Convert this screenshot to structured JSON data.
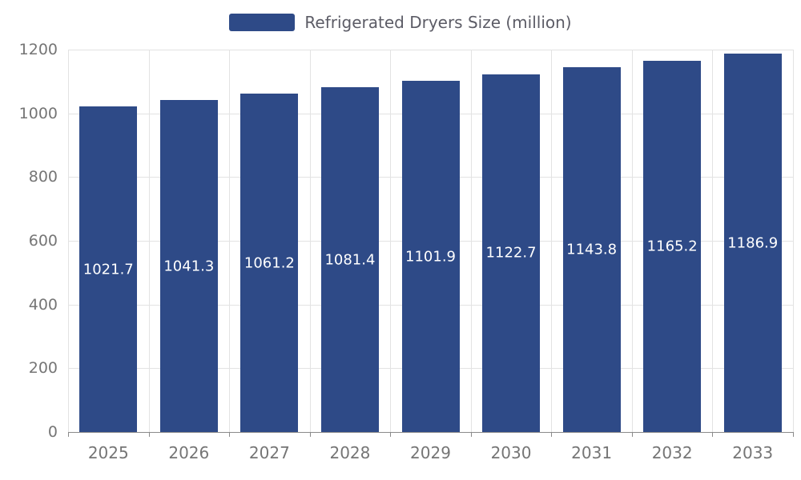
{
  "legend": {
    "label": "Refrigerated Dryers Size (million)"
  },
  "chart_data": {
    "type": "bar",
    "title": "Refrigerated Dryers Size (million)",
    "series_name": "Refrigerated Dryers Size (million)",
    "categories": [
      "2025",
      "2026",
      "2027",
      "2028",
      "2029",
      "2030",
      "2031",
      "2032",
      "2033"
    ],
    "values": [
      1021.7,
      1041.3,
      1061.2,
      1081.4,
      1101.9,
      1122.7,
      1143.8,
      1165.2,
      1186.9
    ],
    "ylim": [
      0,
      1200
    ],
    "yticks": [
      0,
      200,
      400,
      600,
      800,
      1000,
      1200
    ],
    "legend_position": "top",
    "grid": true,
    "colors": {
      "bar": "#2E4A87",
      "bar_label": "#ffffff",
      "axis_text": "#757575",
      "grid_line": "#e3e3e3",
      "axis_line": "#8a8a8a"
    }
  }
}
